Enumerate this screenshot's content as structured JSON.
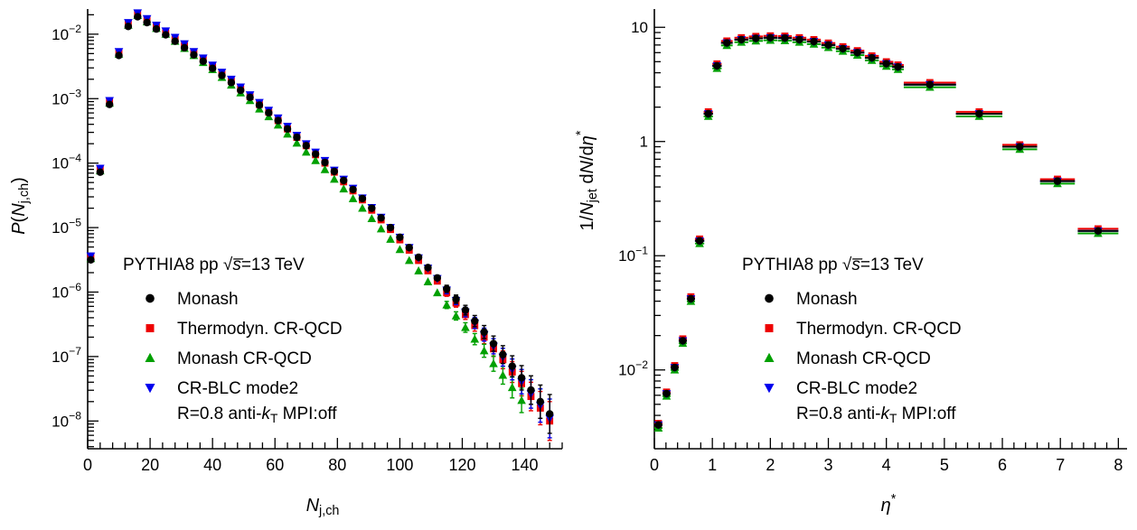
{
  "figure": {
    "background": "#ffffff"
  },
  "chart_data": [
    {
      "type": "scatter",
      "panel": "left",
      "title": "",
      "xlabel": "N_j,ch",
      "ylabel": "P(N_j,ch)",
      "x_axis": {
        "range": [
          0,
          152
        ],
        "major_ticks": [
          0,
          20,
          40,
          60,
          80,
          100,
          120,
          140
        ],
        "minor_step": 4,
        "title_tokens": [
          {
            "t": "N",
            "i": true
          },
          {
            "t": "j,ch",
            "sub": true
          }
        ]
      },
      "y_axis": {
        "scale": "log",
        "log10_range": [
          -8.43,
          -1.61
        ],
        "title_tokens": [
          {
            "t": "P",
            "i": true
          },
          {
            "t": "("
          },
          {
            "t": "N",
            "i": true
          },
          {
            "t": "j,ch",
            "sub": true
          },
          {
            "t": ")"
          }
        ]
      },
      "legend": {
        "header_text": "PYTHIA8 pp √s=13 TeV",
        "header_tokens": [
          {
            "t": "PYTHIA8 pp  "
          },
          {
            "t": "√"
          },
          {
            "t": "s",
            "i": true,
            "ol": true
          },
          {
            "t": "=13 TeV"
          }
        ],
        "footer_text": "R=0.8 anti-k_T MPI:off",
        "footer_tokens": [
          {
            "t": "R=0.8 anti-"
          },
          {
            "t": "k",
            "i": true
          },
          {
            "t": "T",
            "sub": true
          },
          {
            "t": " MPI:off"
          }
        ]
      },
      "yerr_log": {
        "base": 0.018,
        "tail_power": 8,
        "tail_amp": 0.35
      },
      "x": [
        1,
        4,
        7,
        10,
        13,
        16,
        19,
        22,
        25,
        28,
        31,
        34,
        37,
        40,
        43,
        46,
        49,
        52,
        55,
        58,
        61,
        64,
        67,
        70,
        73,
        76,
        79,
        82,
        85,
        88,
        91,
        94,
        97,
        100,
        103,
        106,
        109,
        112,
        115,
        118,
        121,
        124,
        127,
        130,
        133,
        136,
        139,
        142,
        145,
        148
      ],
      "series": [
        {
          "name": "Monash",
          "marker": "circle",
          "color": "#000000",
          "log10_y": [
            -5.5,
            -4.14,
            -3.09,
            -2.33,
            -1.88,
            -1.73,
            -1.82,
            -1.92,
            -2.01,
            -2.11,
            -2.21,
            -2.32,
            -2.42,
            -2.53,
            -2.64,
            -2.75,
            -2.87,
            -2.98,
            -3.1,
            -3.22,
            -3.34,
            -3.47,
            -3.6,
            -3.73,
            -3.86,
            -3.99,
            -4.13,
            -4.27,
            -4.41,
            -4.55,
            -4.7,
            -4.85,
            -5.0,
            -5.15,
            -5.31,
            -5.46,
            -5.62,
            -5.78,
            -5.95,
            -6.11,
            -6.28,
            -6.45,
            -6.62,
            -6.8,
            -6.97,
            -7.15,
            -7.33,
            -7.52,
            -7.7,
            -7.89
          ]
        },
        {
          "name": "Thermodyn. CR-QCD",
          "marker": "square",
          "color": "#ee0000",
          "log10_y": [
            -5.46,
            -4.1,
            -3.05,
            -2.29,
            -1.84,
            -1.69,
            -1.78,
            -1.88,
            -1.98,
            -2.08,
            -2.18,
            -2.29,
            -2.39,
            -2.51,
            -2.62,
            -2.73,
            -2.85,
            -2.97,
            -3.09,
            -3.21,
            -3.34,
            -3.47,
            -3.6,
            -3.73,
            -3.87,
            -4.0,
            -4.14,
            -4.29,
            -4.43,
            -4.57,
            -4.73,
            -4.88,
            -5.03,
            -5.19,
            -5.35,
            -5.51,
            -5.67,
            -5.83,
            -6.01,
            -6.17,
            -6.35,
            -6.52,
            -6.7,
            -6.88,
            -7.05,
            -7.24,
            -7.42,
            -7.62,
            -7.8,
            -8.0
          ]
        },
        {
          "name": "Monash CR-QCD",
          "marker": "triangle-up",
          "color": "#00a000",
          "log10_y": [
            -5.48,
            -4.12,
            -3.07,
            -2.31,
            -1.86,
            -1.71,
            -1.81,
            -1.91,
            -2.0,
            -2.11,
            -2.22,
            -2.33,
            -2.44,
            -2.55,
            -2.67,
            -2.79,
            -2.91,
            -3.03,
            -3.16,
            -3.28,
            -3.41,
            -3.55,
            -3.69,
            -3.83,
            -3.96,
            -4.1,
            -4.25,
            -4.4,
            -4.55,
            -4.7,
            -4.86,
            -5.02,
            -5.18,
            -5.34,
            -5.51,
            -5.67,
            -5.84,
            -6.01,
            -6.2,
            -6.37,
            -6.55,
            -6.73,
            -6.91,
            -7.11,
            -7.29,
            -7.48,
            -7.68,
            null,
            null,
            null
          ]
        },
        {
          "name": "CR-BLC mode2",
          "marker": "triangle-down",
          "color": "#0000ee",
          "log10_y": [
            -5.44,
            -4.08,
            -3.03,
            -2.27,
            -1.82,
            -1.67,
            -1.76,
            -1.86,
            -1.95,
            -2.05,
            -2.15,
            -2.27,
            -2.37,
            -2.48,
            -2.59,
            -2.7,
            -2.82,
            -2.94,
            -3.06,
            -3.18,
            -3.3,
            -3.43,
            -3.57,
            -3.7,
            -3.83,
            -3.96,
            -4.11,
            -4.25,
            -4.39,
            -4.54,
            -4.69,
            -4.84,
            -5.0,
            -5.15,
            -5.31,
            -5.47,
            -5.63,
            -5.79,
            -5.97,
            -6.13,
            -6.31,
            -6.48,
            -6.66,
            -6.84,
            -7.01,
            -7.2,
            -7.39,
            -7.58,
            -7.76,
            -7.96
          ]
        }
      ]
    },
    {
      "type": "scatter",
      "panel": "right",
      "title": "",
      "xlabel": "η*",
      "ylabel": "1/N_jet dN/dη*",
      "x_axis": {
        "range": [
          0,
          8.15
        ],
        "major_ticks": [
          0,
          1,
          2,
          3,
          4,
          5,
          6,
          7,
          8
        ],
        "minor_step": 0.2,
        "title_tokens": [
          {
            "t": "η",
            "i": true
          },
          {
            "t": "*",
            "sup": true
          }
        ]
      },
      "y_axis": {
        "scale": "log",
        "log10_range": [
          -2.69,
          1.16
        ],
        "title_tokens": [
          {
            "t": "1/"
          },
          {
            "t": "N",
            "i": true
          },
          {
            "t": "jet",
            "sub": true
          },
          {
            "t": " d"
          },
          {
            "t": "N",
            "i": true
          },
          {
            "t": "/d"
          },
          {
            "t": "η",
            "i": true
          },
          {
            "t": "*",
            "sup": true
          }
        ]
      },
      "legend": {
        "header_text": "PYTHIA8 pp √s=13 TeV",
        "header_tokens": [
          {
            "t": "PYTHIA8 pp  "
          },
          {
            "t": "√"
          },
          {
            "t": "s",
            "i": true,
            "ol": true
          },
          {
            "t": "=13 TeV"
          }
        ],
        "footer_text": "R=0.8 anti-k_T MPI:off",
        "footer_tokens": [
          {
            "t": "R=0.8 anti-"
          },
          {
            "t": "k",
            "i": true
          },
          {
            "t": "T",
            "sub": true
          },
          {
            "t": " MPI:off"
          }
        ]
      },
      "yerr_log": {
        "base": 0.022,
        "tail_power": 1,
        "tail_amp": 0
      },
      "x": [
        0.07,
        0.21,
        0.35,
        0.49,
        0.63,
        0.78,
        0.93,
        1.08,
        1.25,
        1.5,
        1.75,
        2.0,
        2.25,
        2.5,
        2.75,
        3.0,
        3.25,
        3.5,
        3.75,
        4.0,
        4.2,
        4.75,
        5.6,
        6.3,
        6.95,
        7.65
      ],
      "xerr": [
        0.07,
        0.07,
        0.07,
        0.07,
        0.07,
        0.08,
        0.08,
        0.08,
        0.1,
        0.12,
        0.12,
        0.12,
        0.12,
        0.12,
        0.12,
        0.12,
        0.12,
        0.12,
        0.12,
        0.12,
        0.1,
        0.45,
        0.4,
        0.3,
        0.3,
        0.35
      ],
      "series": [
        {
          "name": "Monash",
          "marker": "circle",
          "color": "#000000",
          "y": [
            0.0033,
            0.0062,
            0.0105,
            0.018,
            0.042,
            0.135,
            1.75,
            4.6,
            7.3,
            7.8,
            8.0,
            8.1,
            8.05,
            7.8,
            7.5,
            7.0,
            6.5,
            6.0,
            5.4,
            4.8,
            4.5,
            3.15,
            1.75,
            0.9,
            0.45,
            0.165
          ]
        },
        {
          "name": "Thermodyn. CR-QCD",
          "marker": "square",
          "color": "#ee0000",
          "y": [
            0.0034,
            0.0064,
            0.0109,
            0.0187,
            0.0437,
            0.14,
            1.82,
            4.78,
            7.59,
            8.11,
            8.32,
            8.42,
            8.37,
            8.11,
            7.8,
            7.28,
            6.76,
            6.24,
            5.62,
            4.99,
            4.68,
            3.28,
            1.82,
            0.936,
            0.468,
            0.172
          ]
        },
        {
          "name": "Monash CR-QCD",
          "marker": "triangle-up",
          "color": "#00a000",
          "y": [
            0.0031,
            0.0059,
            0.01,
            0.0171,
            0.0399,
            0.128,
            1.66,
            4.37,
            6.94,
            7.41,
            7.6,
            7.7,
            7.65,
            7.41,
            7.13,
            6.65,
            6.18,
            5.7,
            5.13,
            4.56,
            4.28,
            2.99,
            1.66,
            0.855,
            0.428,
            0.157
          ]
        },
        {
          "name": "CR-BLC mode2",
          "marker": "triangle-down",
          "color": "#0000ee",
          "y": [
            0.0033,
            0.0062,
            0.0105,
            0.018,
            0.042,
            0.135,
            1.75,
            4.6,
            7.3,
            7.8,
            8.0,
            8.1,
            8.05,
            7.8,
            7.5,
            7.0,
            6.5,
            6.0,
            5.4,
            4.8,
            4.5,
            3.15,
            1.75,
            0.9,
            0.45,
            0.165
          ]
        }
      ]
    }
  ]
}
